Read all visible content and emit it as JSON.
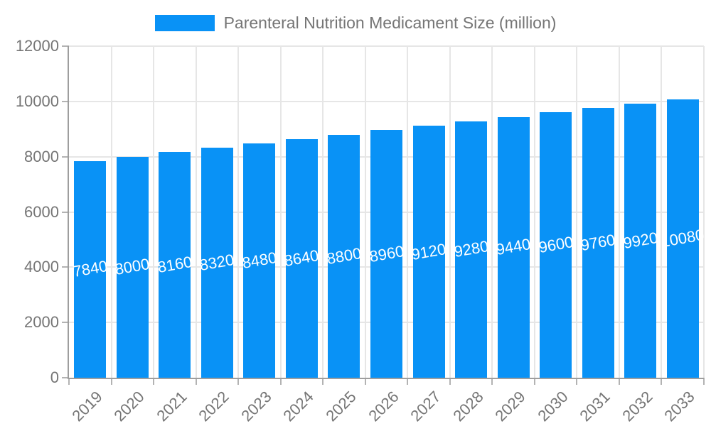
{
  "legend": {
    "label": "Parenteral Nutrition Medicament Size (million)"
  },
  "chart_data": {
    "type": "bar",
    "title": "Parenteral Nutrition Medicament Size (million)",
    "categories": [
      "2019",
      "2020",
      "2021",
      "2022",
      "2023",
      "2024",
      "2025",
      "2026",
      "2027",
      "2028",
      "2029",
      "2030",
      "2031",
      "2032",
      "2033"
    ],
    "values": [
      7840,
      8000,
      8160,
      8320,
      8480,
      8640,
      8800,
      8960,
      9120,
      9280,
      9440,
      9600,
      9760,
      9920,
      10080
    ],
    "xlabel": "",
    "ylabel": "",
    "ylim": [
      0,
      12000
    ],
    "yticks": [
      0,
      2000,
      4000,
      6000,
      8000,
      10000,
      12000
    ],
    "grid": true,
    "legend_position": "top",
    "colors": {
      "bar": "#0992F6",
      "grid": "#e6e6e6",
      "axis": "#9e9e9e",
      "tick": "#b3b3b3",
      "tick_label": "#757575",
      "legend_text": "#757575",
      "value_label": "#ffffff",
      "background": "#ffffff"
    }
  }
}
